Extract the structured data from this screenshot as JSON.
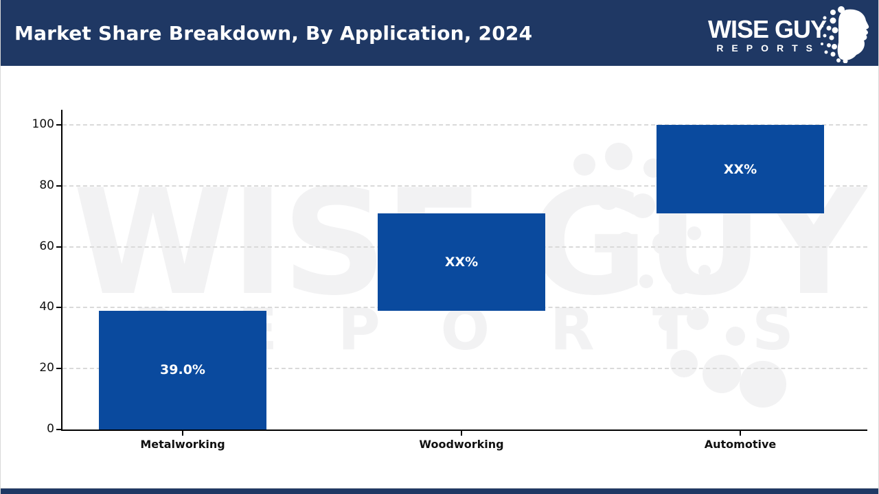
{
  "header": {
    "title": "Market Share Breakdown, By Application, 2024",
    "logo": {
      "primary": "WISE GUY",
      "secondary": "REPORTS"
    }
  },
  "watermark": {
    "primary": "WISE GUY",
    "secondary": "REPORTS"
  },
  "colors": {
    "header_bg": "#1f3864",
    "footer_bg": "#1f3864",
    "bar_blue": "#0a4a9e",
    "gridline": "#d9d9d9",
    "watermark": "#f2f2f3",
    "axis": "#000000",
    "title_text": "#ffffff",
    "bar_label_text": "#ffffff"
  },
  "chart_data": {
    "type": "bar",
    "subtype": "floating-segment",
    "title": "Market Share Breakdown, By Application, 2024",
    "categories": [
      "Metalworking",
      "Woodworking",
      "Automotive"
    ],
    "series": [
      {
        "name": "Market share (%)",
        "segments": [
          {
            "category": "Metalworking",
            "start": 0,
            "end": 39,
            "label": "39.0%"
          },
          {
            "category": "Woodworking",
            "start": 39,
            "end": 71,
            "label": "XX%"
          },
          {
            "category": "Automotive",
            "start": 71,
            "end": 100,
            "label": "XX%"
          }
        ]
      }
    ],
    "xlabel": "",
    "ylabel": "",
    "ylim": [
      0,
      105
    ],
    "yticks": [
      0,
      20,
      40,
      60,
      80,
      100
    ],
    "grid": "dashed-horizontal",
    "legend": "none",
    "bar_value_labels_inside": true
  }
}
